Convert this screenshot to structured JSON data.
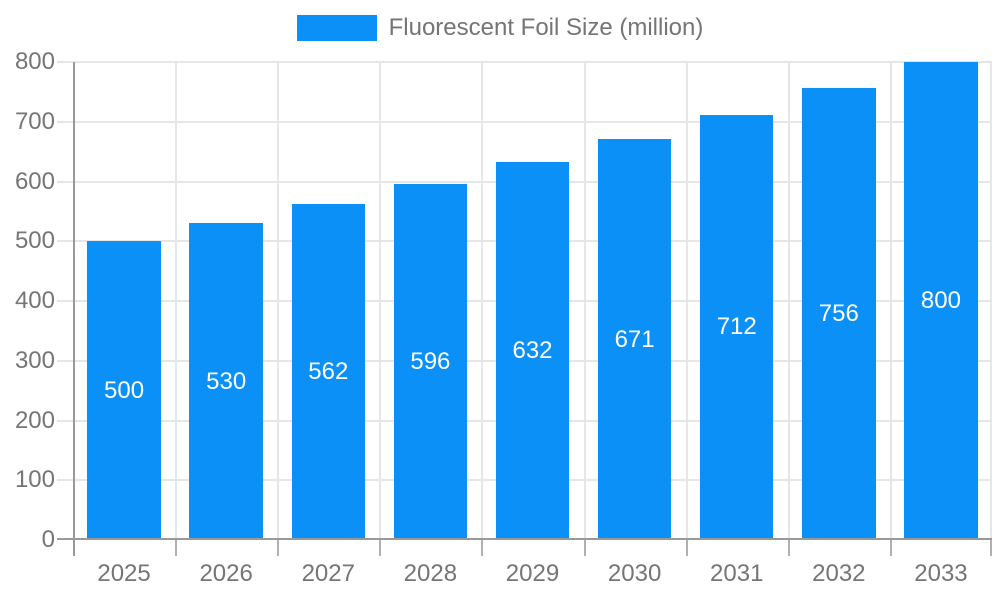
{
  "legend": {
    "label": "Fluorescent Foil Size (million)"
  },
  "chart_data": {
    "type": "bar",
    "title": "Fluorescent Foil Size (million)",
    "series_name": "Fluorescent Foil Size (million)",
    "categories": [
      "2025",
      "2026",
      "2027",
      "2028",
      "2029",
      "2030",
      "2031",
      "2032",
      "2033"
    ],
    "values": [
      500,
      530,
      562,
      596,
      632,
      671,
      712,
      756,
      800
    ],
    "xlabel": "",
    "ylabel": "",
    "ylim": [
      0,
      800
    ],
    "yticks": [
      0,
      100,
      200,
      300,
      400,
      500,
      600,
      700,
      800
    ],
    "grid": true,
    "legend_position": "top",
    "data_labels_position": "inside-middle",
    "colors": {
      "bar": "#0b90f8",
      "data_label": "#ffffff",
      "axis_text": "#757575",
      "axis_line": "#999999",
      "gridline": "#e6e6e6",
      "tick": "#b0b0b0",
      "background": "#ffffff"
    }
  }
}
